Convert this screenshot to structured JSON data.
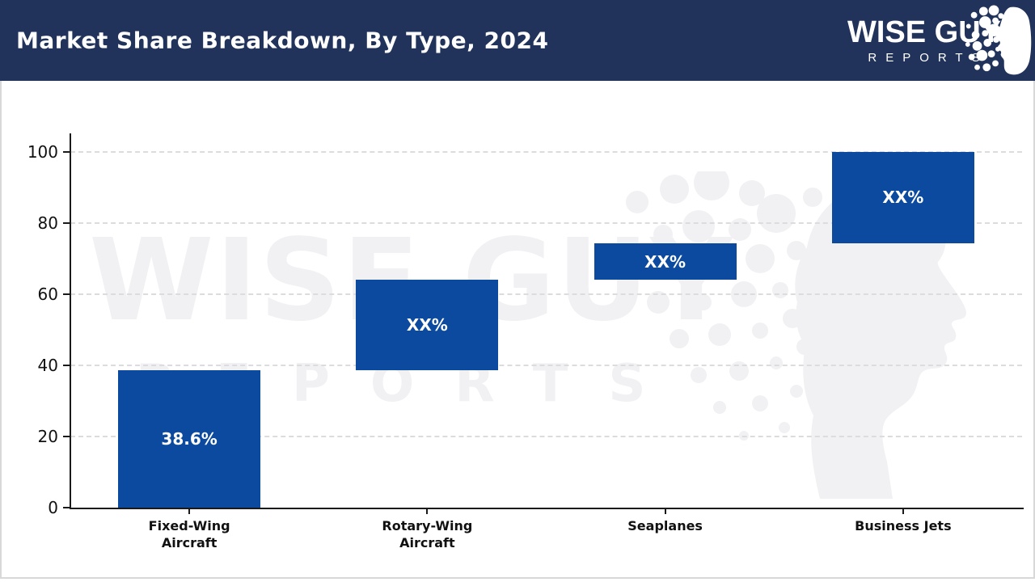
{
  "header": {
    "title": "Market Share Breakdown, By Type, 2024",
    "brand": {
      "name": "WISE GUY",
      "subtitle": "REPORTS"
    },
    "background_color": "#22335b",
    "text_color": "#ffffff"
  },
  "watermark": {
    "name": "WISE GUY",
    "subtitle": "REPORTS"
  },
  "chart_data": {
    "type": "bar",
    "subtype": "waterfall",
    "title": "Market Share Breakdown, By Type, 2024",
    "categories": [
      "Fixed-Wing Aircraft",
      "Rotary-Wing Aircraft",
      "Seaplanes",
      "Business Jets"
    ],
    "segments": [
      {
        "category": "Fixed-Wing Aircraft",
        "start": 0,
        "end": 38.6,
        "label": "38.6%"
      },
      {
        "category": "Rotary-Wing Aircraft",
        "start": 38.6,
        "end": 64.0,
        "label": "XX%"
      },
      {
        "category": "Seaplanes",
        "start": 64.0,
        "end": 74.2,
        "label": "XX%"
      },
      {
        "category": "Business Jets",
        "start": 74.2,
        "end": 100,
        "label": "XX%"
      }
    ],
    "ylim": [
      0,
      100
    ],
    "yticks": [
      0,
      20,
      40,
      60,
      80,
      100
    ],
    "xlabel": "",
    "ylabel": "",
    "legend": "none",
    "grid": "horizontal-dashed",
    "bar_color": "#0b4a9e",
    "bar_label_color": "#ffffff",
    "axis_color": "#1a1a1a",
    "gridline_color": "#dcdcdc"
  }
}
